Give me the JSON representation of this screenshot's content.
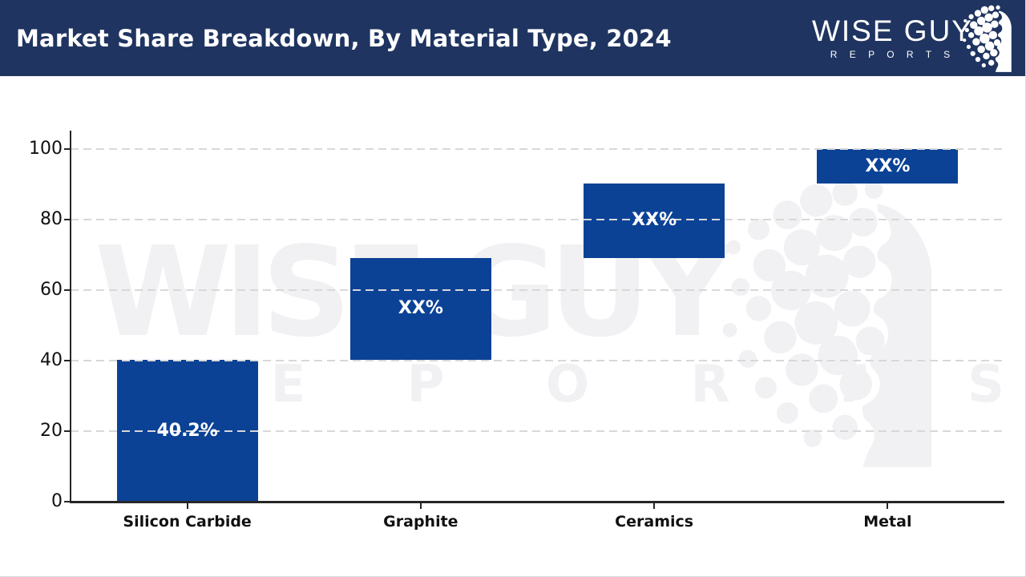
{
  "header": {
    "title": "Market Share Breakdown, By Material Type, 2024",
    "logo": {
      "line1": "WISE GUY",
      "line2": "R E P O R T S"
    }
  },
  "watermark": {
    "line1": "WISE GUY",
    "line2": "R E P O R T S"
  },
  "chart_data": {
    "type": "bar",
    "subtype": "waterfall",
    "title": "Market Share Breakdown, By Material Type, 2024",
    "categories": [
      "Silicon Carbide",
      "Graphite",
      "Ceramics",
      "Metal"
    ],
    "series": [
      {
        "name": "Market share (%)",
        "segments": [
          {
            "category": "Silicon Carbide",
            "start": 0,
            "end": 40.2,
            "label": "40.2%"
          },
          {
            "category": "Graphite",
            "start": 40.2,
            "end": 69.2,
            "label": "XX%"
          },
          {
            "category": "Ceramics",
            "start": 69.2,
            "end": 90.2,
            "label": "XX%"
          },
          {
            "category": "Metal",
            "start": 90.2,
            "end": 100,
            "label": "XX%"
          }
        ]
      }
    ],
    "xlabel": "",
    "ylabel": "",
    "yticks": [
      0,
      20,
      40,
      60,
      80,
      100
    ],
    "ylim": [
      0,
      105
    ],
    "grid": "horizontal-dashed",
    "legend": "none",
    "bar_color": "#0B4296"
  },
  "colors": {
    "header_bg": "#1F3460",
    "bar": "#0B4296",
    "grid": "#D8D8D8",
    "axis": "#262626",
    "watermark": "#F1F1F3"
  }
}
